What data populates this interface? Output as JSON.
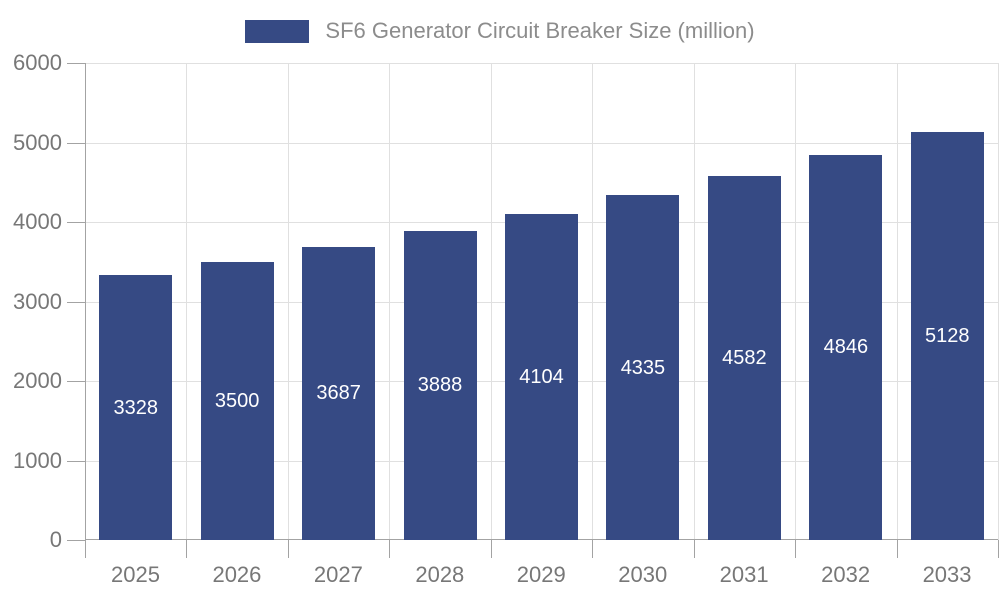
{
  "legend": {
    "label": "SF6 Generator Circuit Breaker Size (million)"
  },
  "chart_data": {
    "type": "bar",
    "title": "SF6 Generator Circuit Breaker Size (million)",
    "categories": [
      "2025",
      "2026",
      "2027",
      "2028",
      "2029",
      "2030",
      "2031",
      "2032",
      "2033"
    ],
    "values": [
      3328,
      3500,
      3687,
      3888,
      4104,
      4335,
      4582,
      4846,
      5128
    ],
    "xlabel": "",
    "ylabel": "",
    "ylim": [
      0,
      6000
    ],
    "yticks": [
      0,
      1000,
      2000,
      3000,
      4000,
      5000,
      6000
    ],
    "grid": true,
    "legend_position": "top-center",
    "value_labels": "inside-center"
  },
  "colors": {
    "bar_fill": "#364a84",
    "bar_value_text": "#ffffff",
    "legend_text": "#8c8c8c",
    "axis_label_text": "#777777",
    "gridline": "#e0e0e0",
    "axis_line": "#a3a3a3",
    "background": "#ffffff"
  }
}
